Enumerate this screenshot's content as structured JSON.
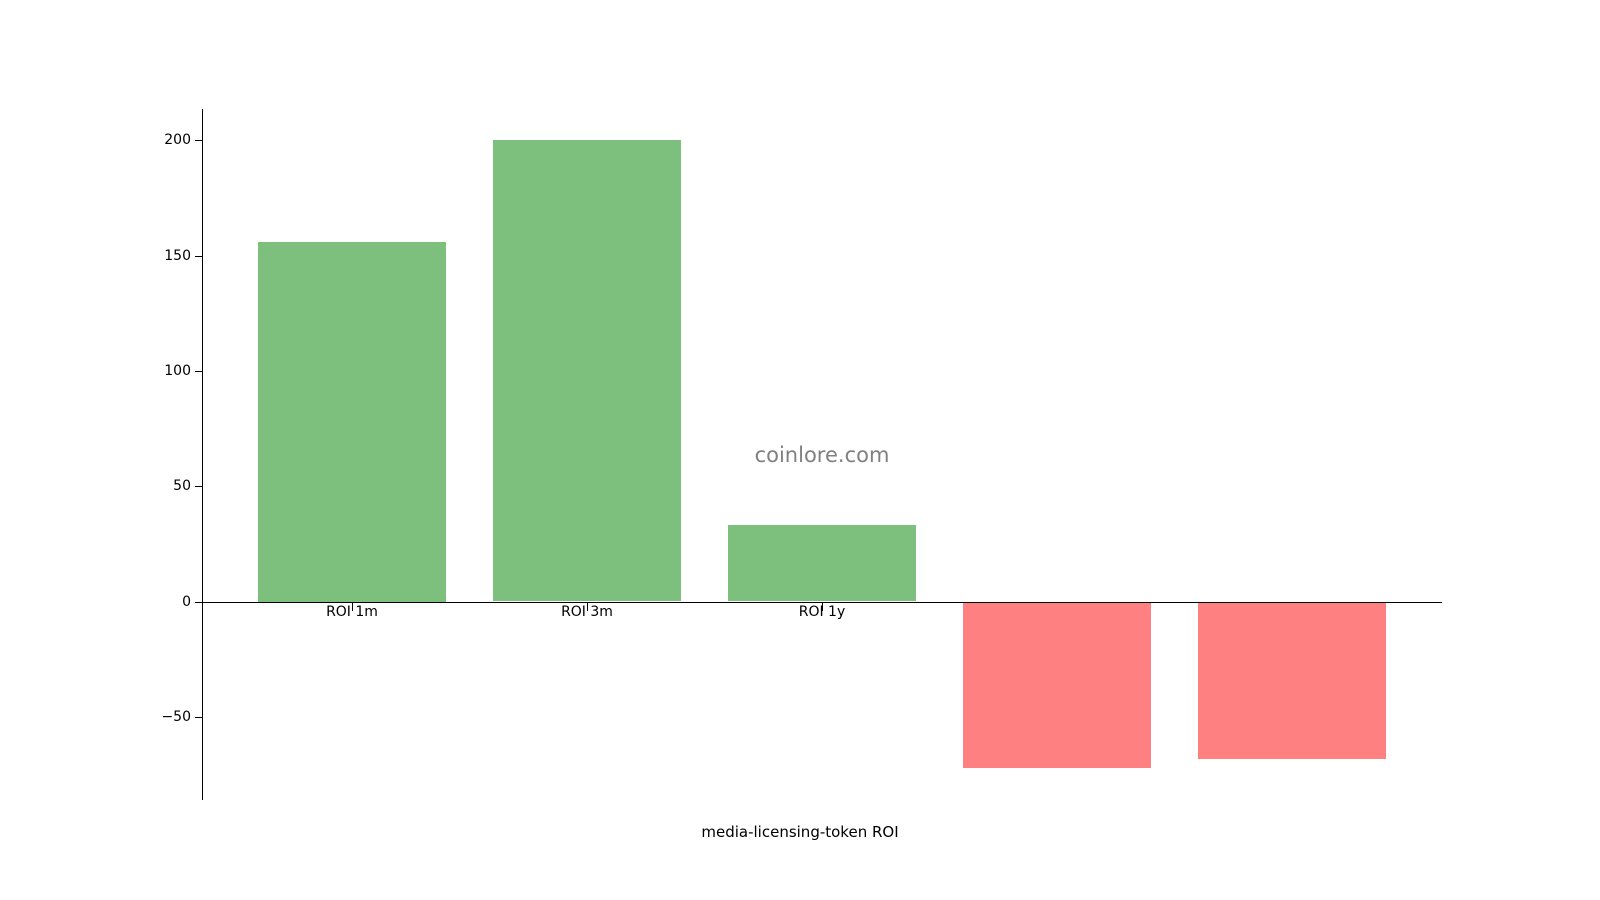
{
  "chart_data": {
    "type": "bar",
    "title": "media-licensing-token ROI",
    "watermark": "coinlore.com",
    "categories": [
      "ROI 1m",
      "ROI 3m",
      "ROI 1y",
      "",
      ""
    ],
    "x": [
      0,
      1,
      2,
      3,
      4
    ],
    "values": [
      156,
      200,
      33,
      -72,
      -68
    ],
    "positive_color": "#7dc07d",
    "negative_color": "#ff8080",
    "yticks": [
      200,
      150,
      100,
      50,
      0,
      -50
    ],
    "ytick_labels": [
      "200",
      "150",
      "100",
      "50",
      "0",
      "−50"
    ],
    "ylim": [
      -86,
      213.5
    ],
    "xlim": [
      -0.64,
      4.64
    ],
    "bar_width": 0.8,
    "grid": false,
    "legend": null,
    "axis_color": "#000000",
    "label_color": "#000000",
    "watermark_color": "#808080",
    "background_color": "#ffffff"
  }
}
